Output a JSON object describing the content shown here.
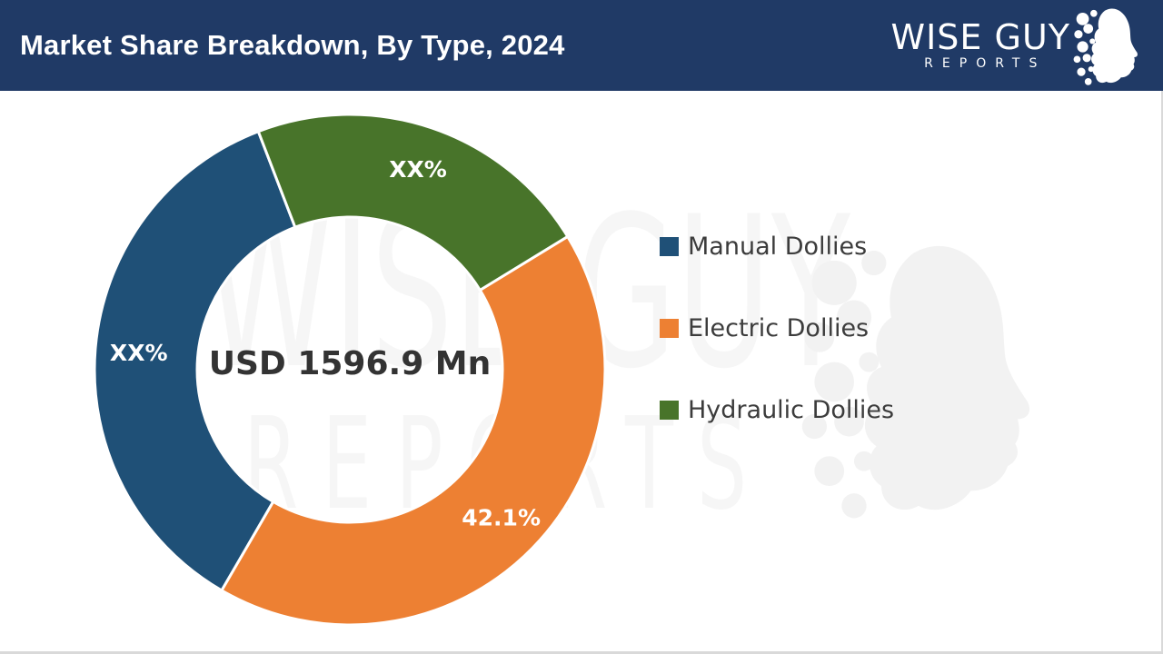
{
  "header": {
    "title": "Market Share Breakdown, By Type, 2024",
    "bg_color": "#203A66",
    "logo_line1": "WISE GUY",
    "logo_line2": "REPORTS"
  },
  "watermark": {
    "line1": "WISE GUY",
    "line2": "REPORTS"
  },
  "chart_data": {
    "type": "pie",
    "subtype": "donut",
    "title": "Market Share Breakdown, By Type, 2024",
    "categories": [
      "Manual Dollies",
      "Electric Dollies",
      "Hydraulic Dollies"
    ],
    "values": [
      35.8,
      42.1,
      22.1
    ],
    "value_display_labels": [
      "XX%",
      "42.1%",
      "XX%"
    ],
    "colors": [
      "#1F5077",
      "#ED8033",
      "#48742A"
    ],
    "center_text": "USD 1596.9 Mn",
    "start_angle_deg": 111,
    "counterclockwise": true,
    "legend_position": "right",
    "grid": false
  }
}
